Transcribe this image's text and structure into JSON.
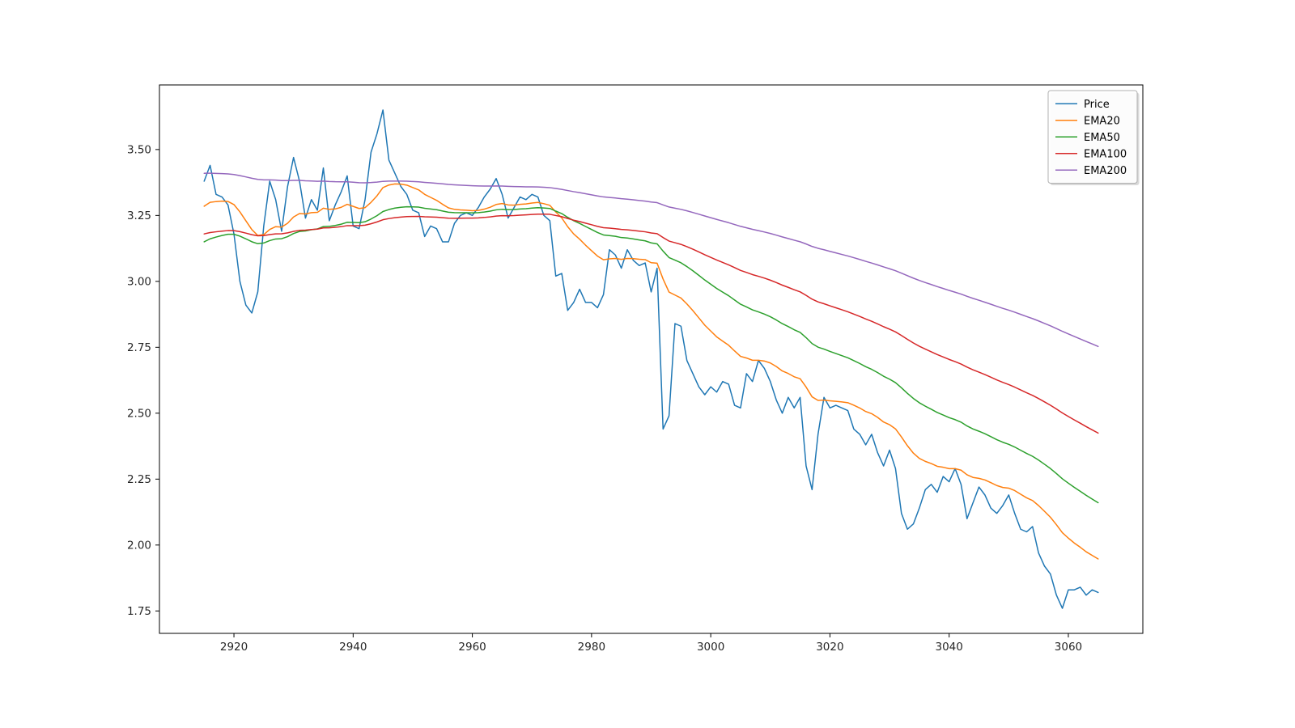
{
  "figure": {
    "background": "#ffffff",
    "axes_edge_color": "#000000",
    "tick_color": "#000000",
    "label_color": "#262626"
  },
  "chart_data": {
    "type": "line",
    "title": "",
    "xlabel": "",
    "ylabel": "",
    "xlim": [
      2907.5,
      3072.5
    ],
    "ylim": [
      1.665,
      3.745
    ],
    "grid": false,
    "legend_position": "upper right",
    "x_ticks": {
      "values": [
        2920,
        2940,
        2960,
        2980,
        3000,
        3020,
        3040,
        3060
      ],
      "labels": [
        "2920",
        "2940",
        "2960",
        "2980",
        "3000",
        "3020",
        "3040",
        "3060"
      ]
    },
    "y_ticks": {
      "values": [
        1.75,
        2.0,
        2.25,
        2.5,
        2.75,
        3.0,
        3.25,
        3.5
      ],
      "labels": [
        "1.75",
        "2.00",
        "2.25",
        "2.50",
        "2.75",
        "3.00",
        "3.25",
        "3.50"
      ]
    },
    "series": [
      {
        "name": "Price",
        "kind": "raw",
        "color": "#1f77b4",
        "x_start": 2915,
        "x_step": 1,
        "y": [
          3.38,
          3.44,
          3.33,
          3.32,
          3.29,
          3.18,
          3.0,
          2.91,
          2.88,
          2.96,
          3.21,
          3.38,
          3.31,
          3.19,
          3.36,
          3.47,
          3.38,
          3.24,
          3.31,
          3.27,
          3.43,
          3.23,
          3.29,
          3.34,
          3.4,
          3.21,
          3.2,
          3.31,
          3.49,
          3.56,
          3.65,
          3.46,
          3.41,
          3.36,
          3.33,
          3.27,
          3.26,
          3.17,
          3.21,
          3.2,
          3.15,
          3.15,
          3.22,
          3.25,
          3.26,
          3.25,
          3.28,
          3.32,
          3.35,
          3.39,
          3.33,
          3.24,
          3.28,
          3.32,
          3.31,
          3.33,
          3.32,
          3.25,
          3.23,
          3.02,
          3.03,
          2.89,
          2.92,
          2.97,
          2.92,
          2.92,
          2.9,
          2.95,
          3.12,
          3.1,
          3.05,
          3.12,
          3.08,
          3.06,
          3.07,
          2.96,
          3.05,
          2.44,
          2.49,
          2.84,
          2.83,
          2.7,
          2.65,
          2.6,
          2.57,
          2.6,
          2.58,
          2.62,
          2.61,
          2.53,
          2.52,
          2.65,
          2.62,
          2.7,
          2.67,
          2.62,
          2.55,
          2.5,
          2.56,
          2.52,
          2.56,
          2.3,
          2.21,
          2.42,
          2.56,
          2.52,
          2.53,
          2.52,
          2.51,
          2.44,
          2.42,
          2.38,
          2.42,
          2.35,
          2.3,
          2.36,
          2.29,
          2.12,
          2.06,
          2.08,
          2.14,
          2.21,
          2.23,
          2.2,
          2.26,
          2.24,
          2.29,
          2.23,
          2.1,
          2.16,
          2.22,
          2.19,
          2.14,
          2.12,
          2.15,
          2.19,
          2.12,
          2.06,
          2.05,
          2.07,
          1.97,
          1.92,
          1.89,
          1.81,
          1.76,
          1.83,
          1.83,
          1.84,
          1.81,
          1.83,
          1.82
        ]
      },
      {
        "name": "EMA20",
        "kind": "ema",
        "source": "Price",
        "period": 20,
        "seed": 3.285,
        "color": "#ff7f0e"
      },
      {
        "name": "EMA50",
        "kind": "ema",
        "source": "Price",
        "period": 50,
        "seed": 3.15,
        "color": "#2ca02c"
      },
      {
        "name": "EMA100",
        "kind": "ema",
        "source": "Price",
        "period": 100,
        "seed": 3.18,
        "color": "#d62728"
      },
      {
        "name": "EMA200",
        "kind": "ema",
        "source": "Price",
        "period": 200,
        "seed": 3.41,
        "color": "#9467bd"
      }
    ]
  }
}
